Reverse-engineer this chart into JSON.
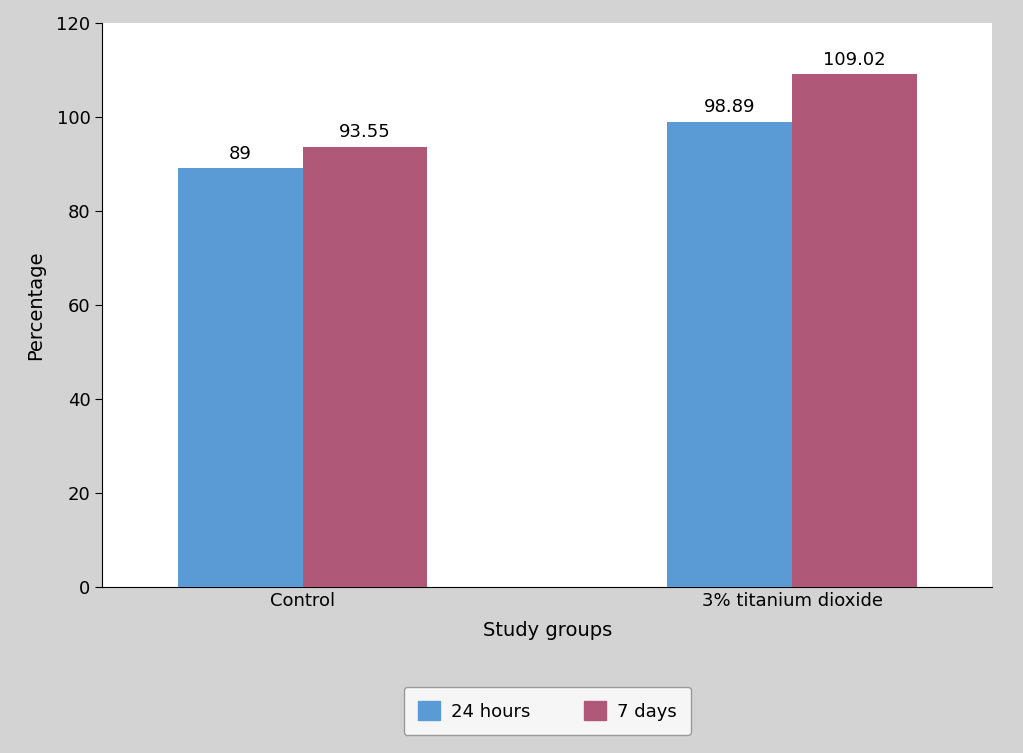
{
  "categories": [
    "Control",
    "3% titanium dioxide"
  ],
  "series": [
    {
      "label": "24 hours",
      "values": [
        89,
        98.89
      ],
      "color": "#5B9BD5"
    },
    {
      "label": "7 days",
      "values": [
        93.55,
        109.02
      ],
      "color": "#B05878"
    }
  ],
  "ylabel": "Percentage",
  "xlabel": "Study groups",
  "ylim": [
    0,
    120
  ],
  "yticks": [
    0,
    20,
    40,
    60,
    80,
    100,
    120
  ],
  "bar_width": 0.28,
  "x_positions": [
    0.45,
    1.55
  ],
  "background_color": "#D3D3D3",
  "plot_background": "#FFFFFF",
  "label_fontsize": 14,
  "tick_fontsize": 13,
  "value_fontsize": 13,
  "legend_fontsize": 13
}
